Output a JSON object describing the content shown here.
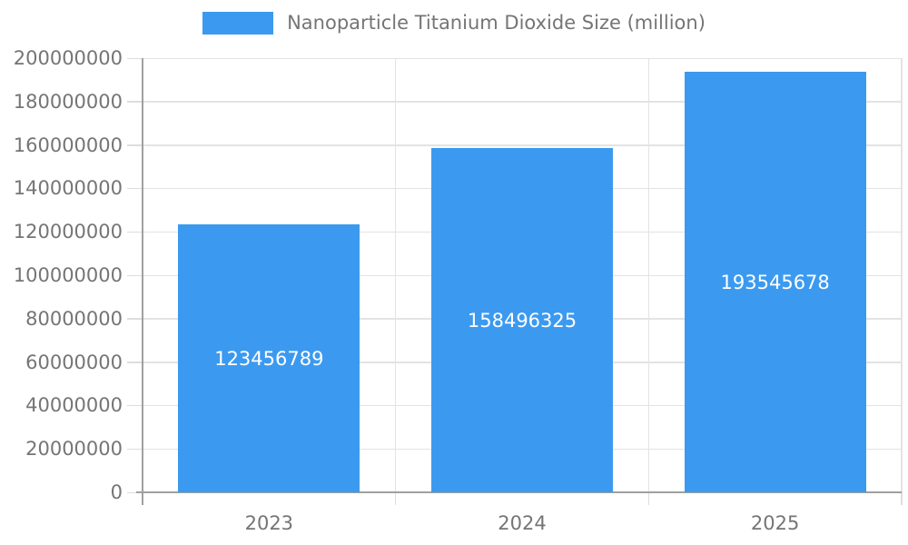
{
  "legend": {
    "label": "Nanoparticle Titanium Dioxide Size (million)",
    "swatch_color": "#3B9AF0"
  },
  "chart_data": {
    "type": "bar",
    "title": "Nanoparticle Titanium Dioxide Size (million)",
    "categories": [
      "2023",
      "2024",
      "2025"
    ],
    "series": [
      {
        "name": "Nanoparticle Titanium Dioxide Size (million)",
        "values": [
          123456789,
          158496325,
          193545678
        ],
        "color": "#3B9AF0"
      }
    ],
    "bar_value_labels": [
      "123456789",
      "158496325",
      "193545678"
    ],
    "xlabel": "",
    "ylabel": "",
    "ylim": [
      0,
      200000000
    ],
    "ytick_step": 20000000,
    "ytick_labels": [
      "200000000",
      "180000000",
      "160000000",
      "140000000",
      "120000000",
      "100000000",
      "80000000",
      "60000000",
      "40000000",
      "20000000",
      "0"
    ],
    "grid": true,
    "legend_position": "top-center"
  },
  "colors": {
    "bar": "#3B9AF0",
    "axis_line": "#A0A0A0",
    "gridline": "#E3E3E3",
    "tick_mark": "#DDDDDD",
    "tick_text": "#757575",
    "bar_label_text": "#FFFFFF",
    "background": "#FFFFFF"
  }
}
